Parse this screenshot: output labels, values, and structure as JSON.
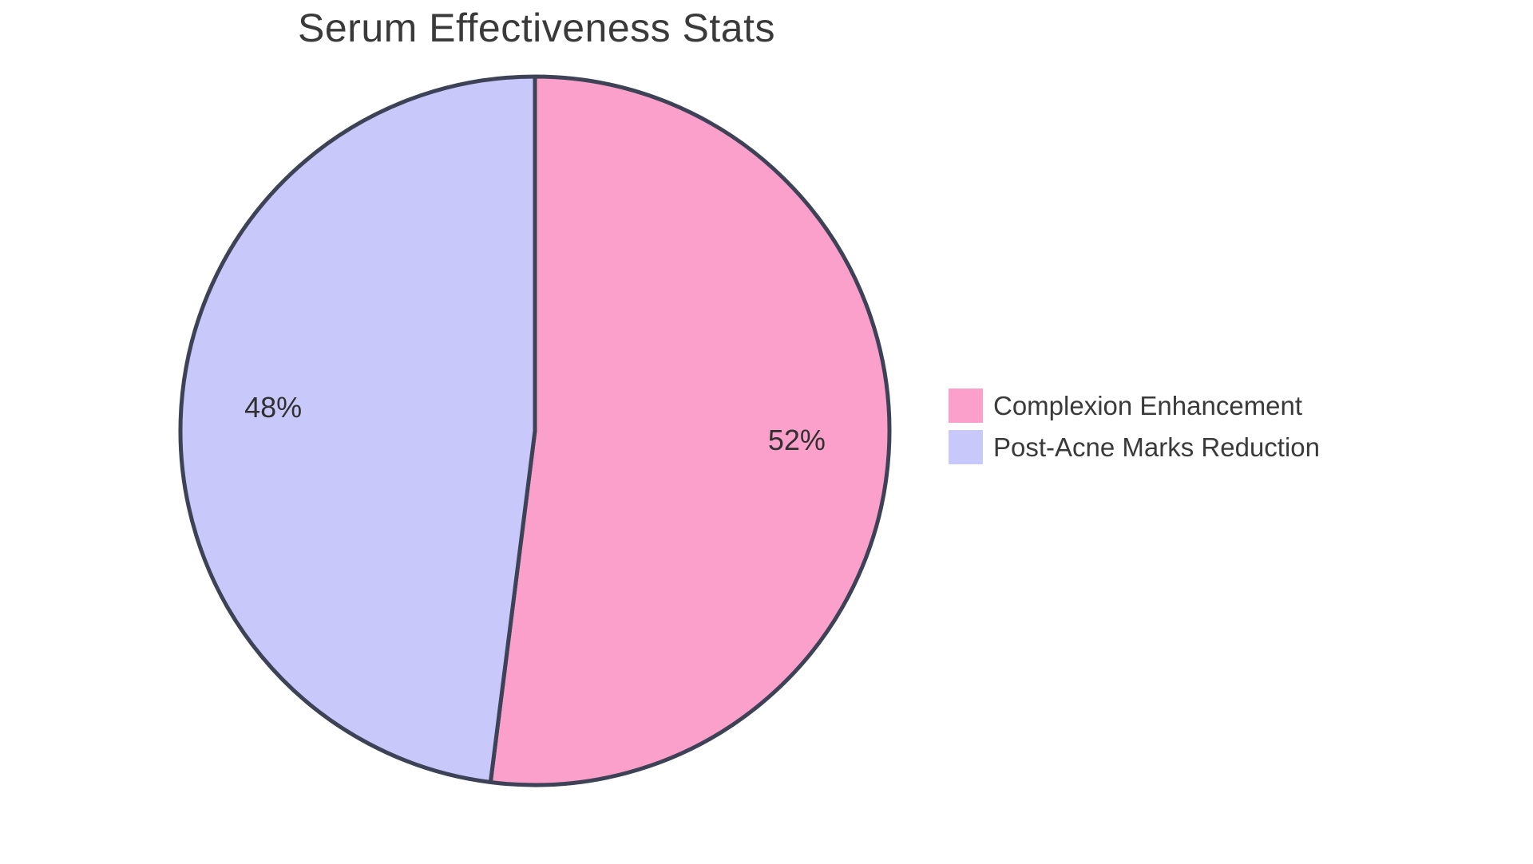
{
  "chart_data": {
    "type": "pie",
    "title": "Serum Effectiveness Stats",
    "categories": [
      "Complexion Enhancement",
      "Post-Acne Marks Reduction"
    ],
    "values": [
      52,
      48
    ],
    "slice_labels": [
      "52%",
      "48%"
    ],
    "colors": [
      "#FB9FCB",
      "#C8C9FA"
    ],
    "stroke_color": "#3E4257",
    "stroke_width": 5,
    "start_angle": "12-oclock",
    "direction": "clockwise",
    "legend_position": "right",
    "title_color": "#3A3A3A",
    "label_color": "#303030",
    "background": "#FFFFFF",
    "legend": [
      {
        "label": "Complexion Enhancement",
        "color": "#FB9FCB"
      },
      {
        "label": "Post-Acne Marks Reduction",
        "color": "#C8C9FA"
      }
    ]
  }
}
